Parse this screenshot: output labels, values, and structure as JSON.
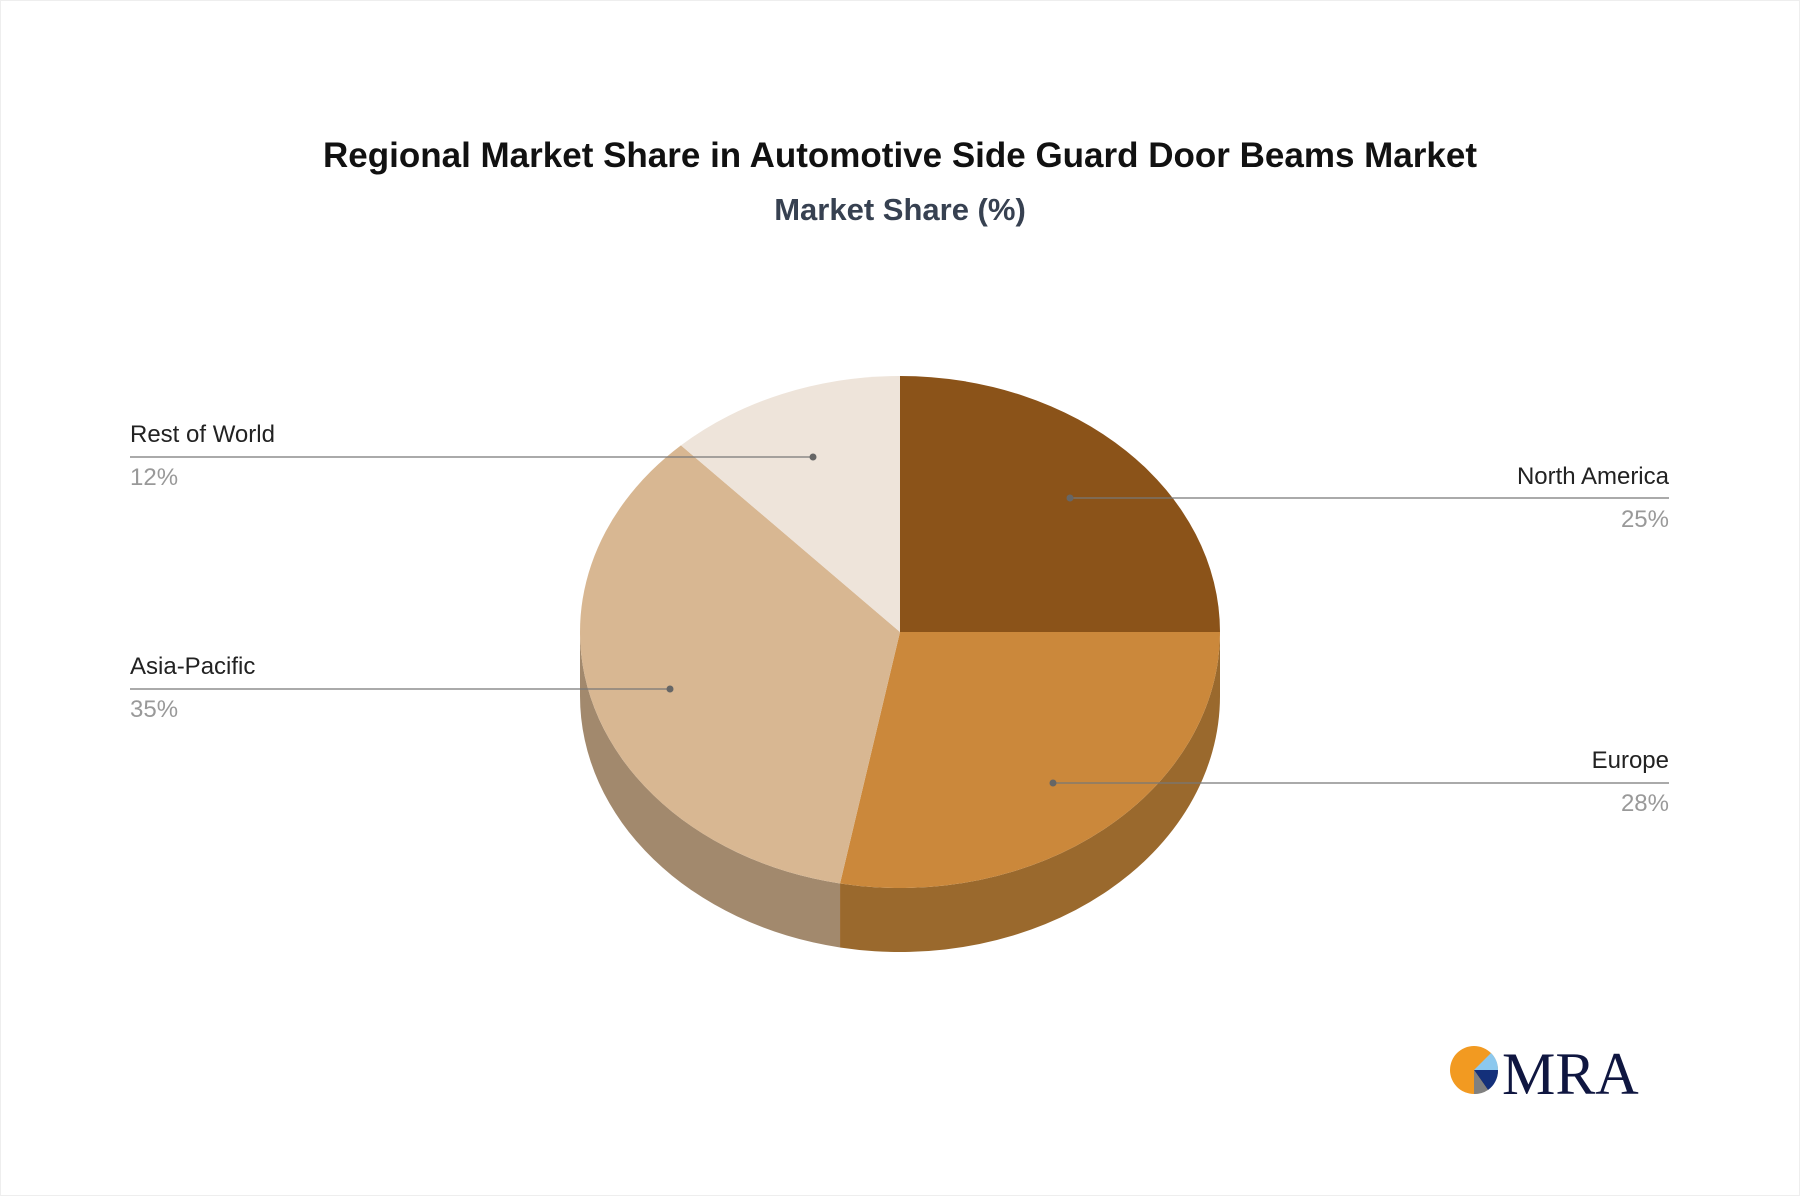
{
  "chart_data": {
    "type": "pie",
    "title": "Regional Market Share in Automotive Side Guard Door Beams Market",
    "subtitle": "Market Share (%)",
    "style": "3d",
    "slices": [
      {
        "label": "North America",
        "value": 25,
        "display": "25%",
        "color": "#8B5319",
        "side_color": "#6E4214"
      },
      {
        "label": "Europe",
        "value": 28,
        "display": "28%",
        "color": "#CB883B",
        "side_color": "#9A692D"
      },
      {
        "label": "Asia-Pacific",
        "value": 35,
        "display": "35%",
        "color": "#D8B792",
        "side_color": "#A2896D"
      },
      {
        "label": "Rest of World",
        "value": 12,
        "display": "12%",
        "color": "#EEE4DA",
        "side_color": "#BDB3A9"
      }
    ]
  },
  "logo": {
    "text": "MRA",
    "icon": "pie-logo-icon"
  }
}
